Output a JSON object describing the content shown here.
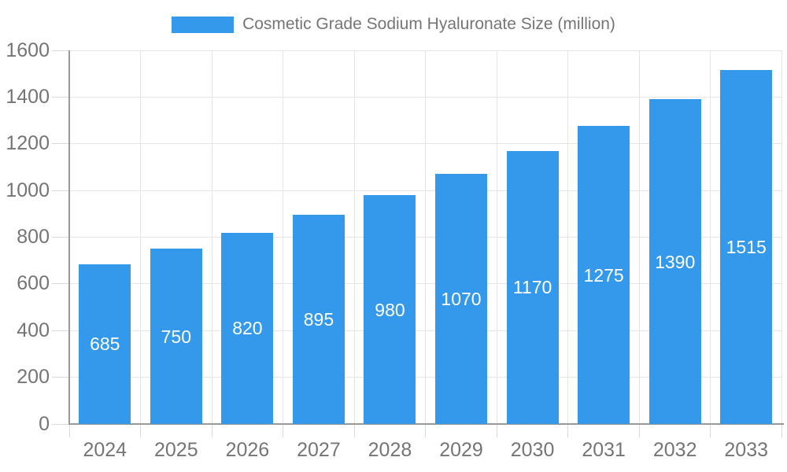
{
  "legend": {
    "label": "Cosmetic Grade Sodium Hyaluronate Size (million)"
  },
  "chart_data": {
    "type": "bar",
    "title": "Cosmetic Grade Sodium Hyaluronate Size (million)",
    "categories": [
      "2024",
      "2025",
      "2026",
      "2027",
      "2028",
      "2029",
      "2030",
      "2031",
      "2032",
      "2033"
    ],
    "series": [
      {
        "name": "Cosmetic Grade Sodium Hyaluronate Size (million)",
        "values": [
          685,
          750,
          820,
          895,
          980,
          1070,
          1170,
          1275,
          1390,
          1515
        ]
      }
    ],
    "data_labels": [
      "685",
      "750",
      "820",
      "895",
      "980",
      "1070",
      "1170",
      "1275",
      "1390",
      "1515"
    ],
    "xlabel": "",
    "ylabel": "",
    "ylim": [
      0,
      1600
    ],
    "yticks": [
      0,
      200,
      400,
      600,
      800,
      1000,
      1200,
      1400,
      1600
    ],
    "grid": true,
    "legend_position": "top-center",
    "colors": {
      "bar": "#3499EB",
      "bar_label": "#ffffff",
      "axis_line": "#999999",
      "gridline": "#e5e5e5",
      "tick_mark": "#d9d9d9",
      "tick_text": "#757575",
      "legend_text": "#757575",
      "background": "#ffffff"
    }
  }
}
